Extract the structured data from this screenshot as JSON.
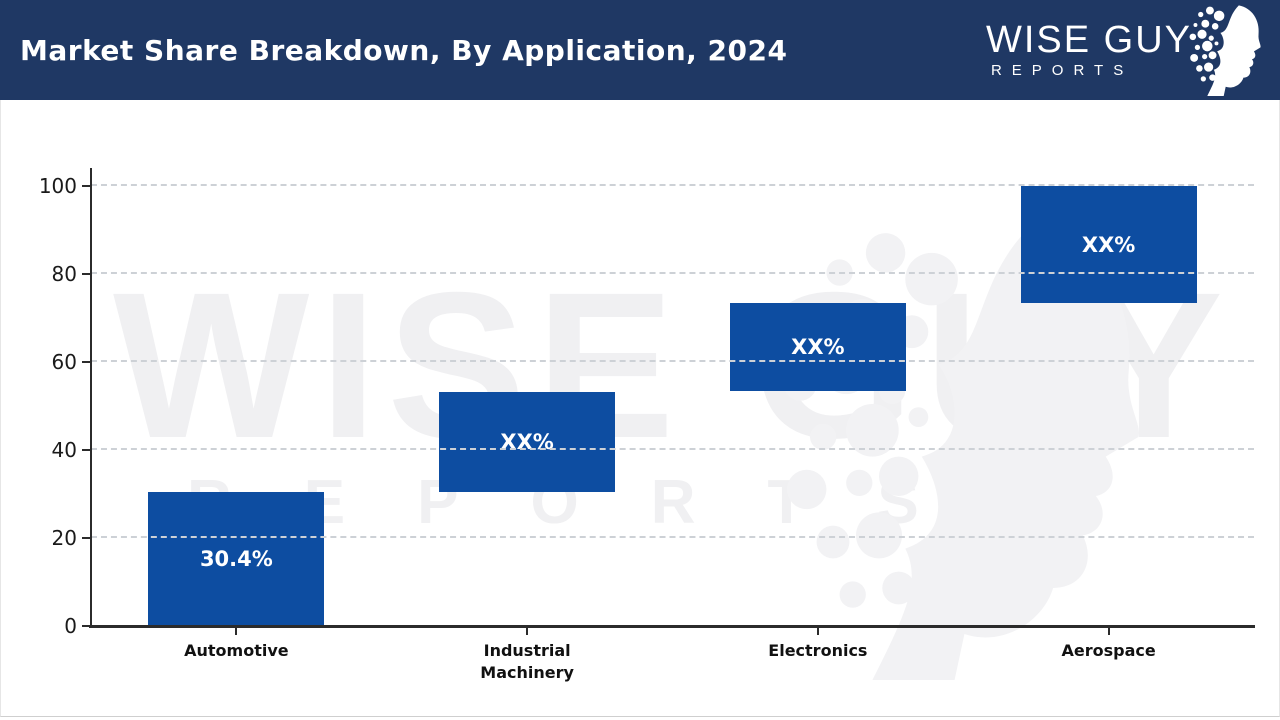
{
  "header": {
    "title": "Market Share Breakdown, By Application, 2024",
    "logo": {
      "name": "WISE GUY",
      "sub": "REPORTS"
    }
  },
  "watermark": {
    "name": "WISE GUY",
    "sub": "REPORTS"
  },
  "colors": {
    "header_bg": "#1F3864",
    "bar_blue": "#0D4DA1",
    "axis": "#2B2B2B",
    "grid": "#CDD1D6",
    "watermark_gray": "#F0F0F2"
  },
  "chart_data": {
    "type": "bar",
    "subtype": "waterfall",
    "title": "Market Share Breakdown, By Application, 2024",
    "categories": [
      "Automotive",
      "Industrial\nMachinery",
      "Electronics",
      "Aerospace"
    ],
    "segments": [
      {
        "category": "Automotive",
        "start": 0,
        "end": 30.4,
        "label": "30.4%"
      },
      {
        "category": "Industrial Machinery",
        "start": 30.4,
        "end": 53.3,
        "label": "XX%"
      },
      {
        "category": "Electronics",
        "start": 53.3,
        "end": 73.4,
        "label": "XX%"
      },
      {
        "category": "Aerospace",
        "start": 73.4,
        "end": 100,
        "label": "XX%"
      }
    ],
    "xlabel": "",
    "ylabel": "",
    "ylim": [
      0,
      100
    ],
    "yticks": [
      0,
      20,
      40,
      60,
      80,
      100
    ],
    "grid": "horizontal-dashed",
    "legend": "none",
    "bar_color": "#0D4DA1"
  }
}
